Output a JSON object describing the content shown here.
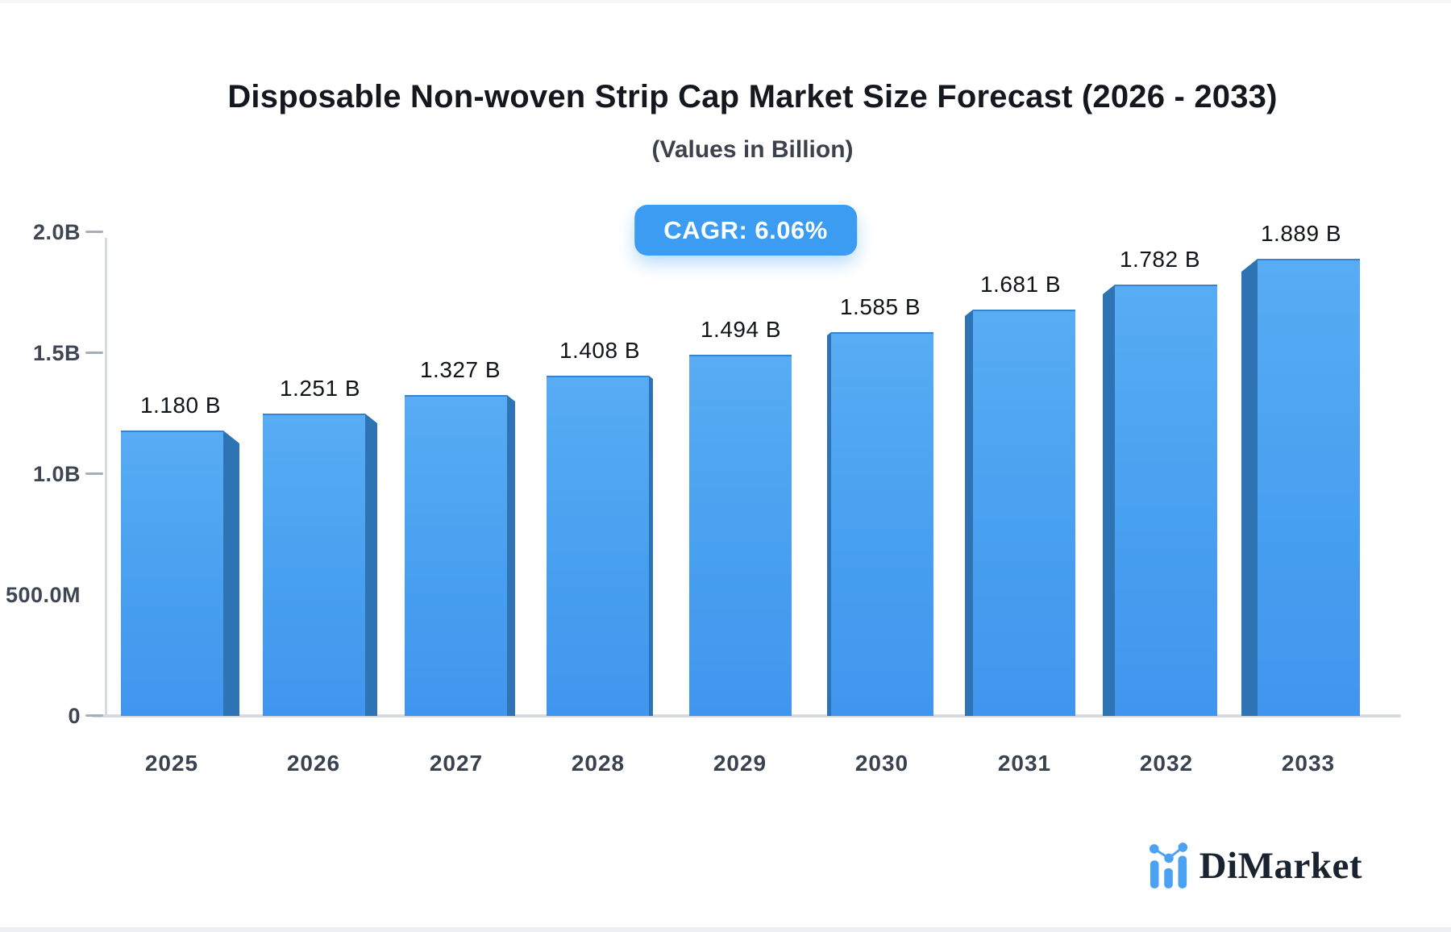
{
  "chart_data": {
    "type": "bar",
    "style": "3d-perspective",
    "title": "Disposable Non-woven Strip Cap Market Size Forecast (2026 - 2033)",
    "subtitle": "(Values in Billion)",
    "annotation": "CAGR: 6.06%",
    "categories": [
      "2025",
      "2026",
      "2027",
      "2028",
      "2029",
      "2030",
      "2031",
      "2032",
      "2033"
    ],
    "values": [
      1.18,
      1.251,
      1.327,
      1.408,
      1.494,
      1.585,
      1.681,
      1.782,
      1.889
    ],
    "bar_labels": [
      "1.180 B",
      "1.251 B",
      "1.327 B",
      "1.408 B",
      "1.494 B",
      "1.585 B",
      "1.681 B",
      "1.782 B",
      "1.889 B"
    ],
    "ylim": [
      0,
      2.0
    ],
    "y_ticks": [
      {
        "label": "2.0B",
        "value": 2.0,
        "dash": true
      },
      {
        "label": "1.5B",
        "value": 1.5,
        "dash": true
      },
      {
        "label": "1.0B",
        "value": 1.0,
        "dash": true
      },
      {
        "label": "500.0M",
        "value": 0.5,
        "dash": false
      },
      {
        "label": "0",
        "value": 0.0,
        "dash": true
      }
    ],
    "grid": false,
    "legend": false,
    "colors": {
      "bar_face_top": "#58acf4",
      "bar_face_bottom": "#4096ee",
      "bar_side": "#2e74b5",
      "axis": "#d7dbe1",
      "badge": "#3b9cf1",
      "logo_blue": "#4ba2f2"
    }
  },
  "branding": {
    "logo_text": "DiMarket"
  }
}
